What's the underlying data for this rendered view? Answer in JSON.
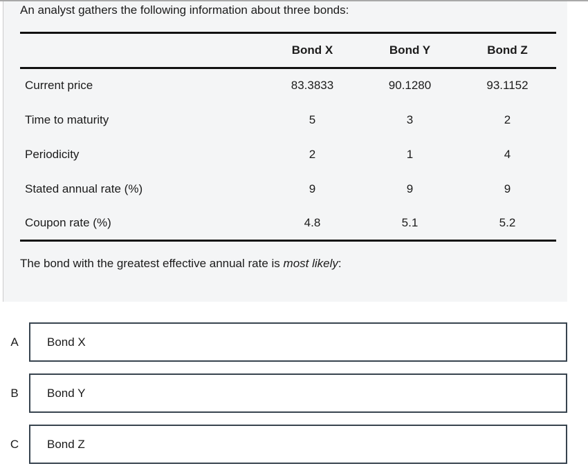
{
  "stem": "An analyst gathers the following information about three bonds:",
  "table": {
    "columns": [
      "",
      "Bond X",
      "Bond Y",
      "Bond Z"
    ],
    "rows": [
      {
        "label": "Current price",
        "values": [
          "83.3833",
          "90.1280",
          "93.1152"
        ]
      },
      {
        "label": "Time to maturity",
        "values": [
          "5",
          "3",
          "2"
        ]
      },
      {
        "label": "Periodicity",
        "values": [
          "2",
          "1",
          "4"
        ]
      },
      {
        "label": "Stated annual rate (%)",
        "values": [
          "9",
          "9",
          "9"
        ]
      },
      {
        "label": "Coupon rate (%)",
        "values": [
          "4.8",
          "5.1",
          "5.2"
        ]
      }
    ]
  },
  "question": {
    "prefix": "The bond with the greatest effective annual rate is ",
    "emphasis": "most likely",
    "suffix": ":"
  },
  "options": [
    {
      "letter": "A",
      "label": "Bond X"
    },
    {
      "letter": "B",
      "label": "Bond Y"
    },
    {
      "letter": "C",
      "label": "Bond Z"
    }
  ],
  "colors": {
    "panel_background": "#f4f5f6",
    "table_rule": "#111111",
    "option_border": "#37434e",
    "top_divider": "#a8a8a8",
    "text": "#1b1b1b"
  }
}
